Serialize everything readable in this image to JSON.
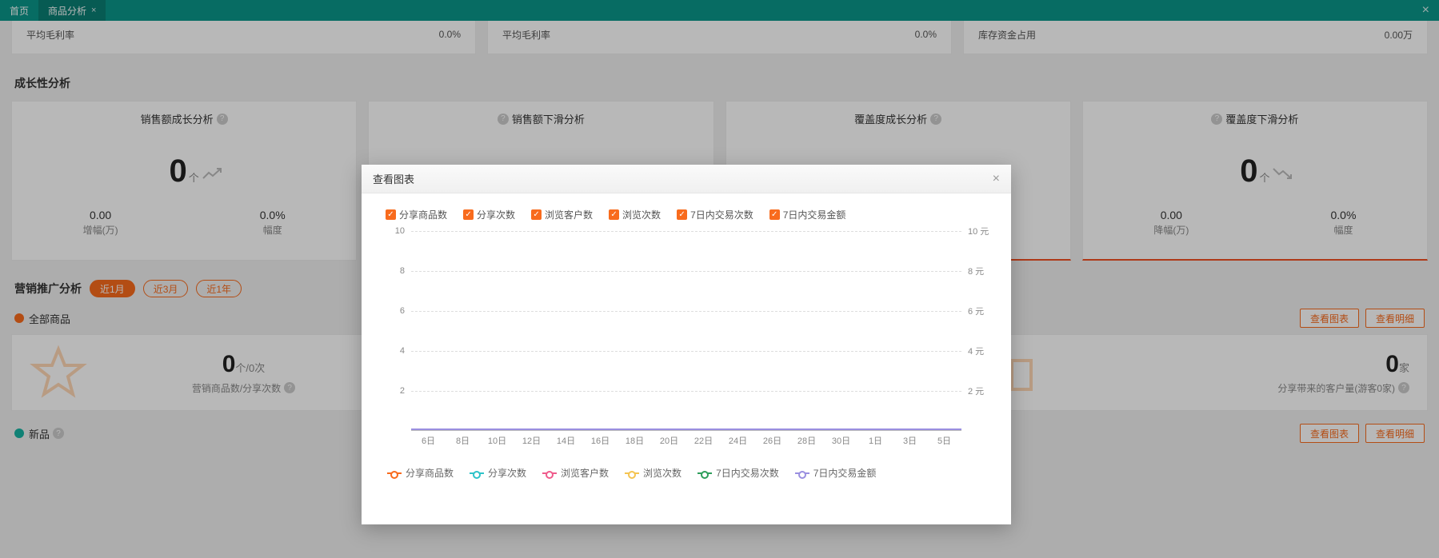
{
  "tabs": {
    "home": "首页",
    "active": "商品分析"
  },
  "metric_cards": [
    {
      "label": "平均毛利率",
      "value": "0.0%"
    },
    {
      "label": "平均毛利率",
      "value": "0.0%"
    },
    {
      "label": "库存资金占用",
      "value": "0.00万"
    }
  ],
  "growth_section_title": "成长性分析",
  "growth_cards": [
    {
      "title": "销售额成长分析",
      "info": true,
      "big": "0",
      "unit": "个",
      "trend": "up",
      "sub": [
        {
          "v": "0.00",
          "k": "增幅(万)"
        },
        {
          "v": "0.0%",
          "k": "幅度"
        }
      ],
      "redline": false
    },
    {
      "title": "销售额下滑分析",
      "info": true,
      "redline": true
    },
    {
      "title": "覆盖度成长分析",
      "info": true,
      "redline": true
    },
    {
      "title": "覆盖度下滑分析",
      "info": true,
      "big": "0",
      "unit": "个",
      "trend": "down",
      "sub": [
        {
          "v": "0.00",
          "k": "降幅(万)"
        },
        {
          "v": "0.0%",
          "k": "幅度"
        }
      ],
      "redline": true
    }
  ],
  "mkt_title": "营销推广分析",
  "mkt_pills": [
    "近1月",
    "近3月",
    "近1年"
  ],
  "mkt_active_pill": 0,
  "mkt_blocks": [
    {
      "dot": "orange",
      "label": "全部商品",
      "buttons": [
        "查看图表",
        "查看明细"
      ],
      "left": {
        "num": "0",
        "unit": "个/0次",
        "cap": "营销商品数/分享次数"
      },
      "right": {
        "num": "0",
        "unit": "家",
        "cap": "分享带来的客户量(游客0家)"
      }
    },
    {
      "dot": "teal",
      "label": "新品",
      "buttons": [
        "查看图表",
        "查看明细"
      ]
    }
  ],
  "modal": {
    "title": "查看图表",
    "checks": [
      "分享商品数",
      "分享次数",
      "浏览客户数",
      "浏览次数",
      "7日内交易次数",
      "7日内交易金额"
    ],
    "yLeft": [
      "10",
      "8",
      "6",
      "4",
      "2"
    ],
    "yRight": [
      "10 元",
      "8 元",
      "6 元",
      "4 元",
      "2 元"
    ],
    "x": [
      "6日",
      "8日",
      "10日",
      "12日",
      "14日",
      "16日",
      "18日",
      "20日",
      "22日",
      "24日",
      "26日",
      "28日",
      "30日",
      "1日",
      "3日",
      "5日"
    ],
    "legend": [
      {
        "label": "分享商品数",
        "color": "#f86b1d"
      },
      {
        "label": "分享次数",
        "color": "#2dc3c9"
      },
      {
        "label": "浏览客户数",
        "color": "#ef5b8c"
      },
      {
        "label": "浏览次数",
        "color": "#f5c451"
      },
      {
        "label": "7日内交易次数",
        "color": "#2e9e5b"
      },
      {
        "label": "7日内交易金额",
        "color": "#9a8fe0"
      }
    ],
    "grid_color": "#dddddd",
    "axis_color": "#bbbbbb",
    "background": "#ffffff"
  },
  "icons": {
    "info": "?",
    "check": "✓",
    "close": "×"
  }
}
